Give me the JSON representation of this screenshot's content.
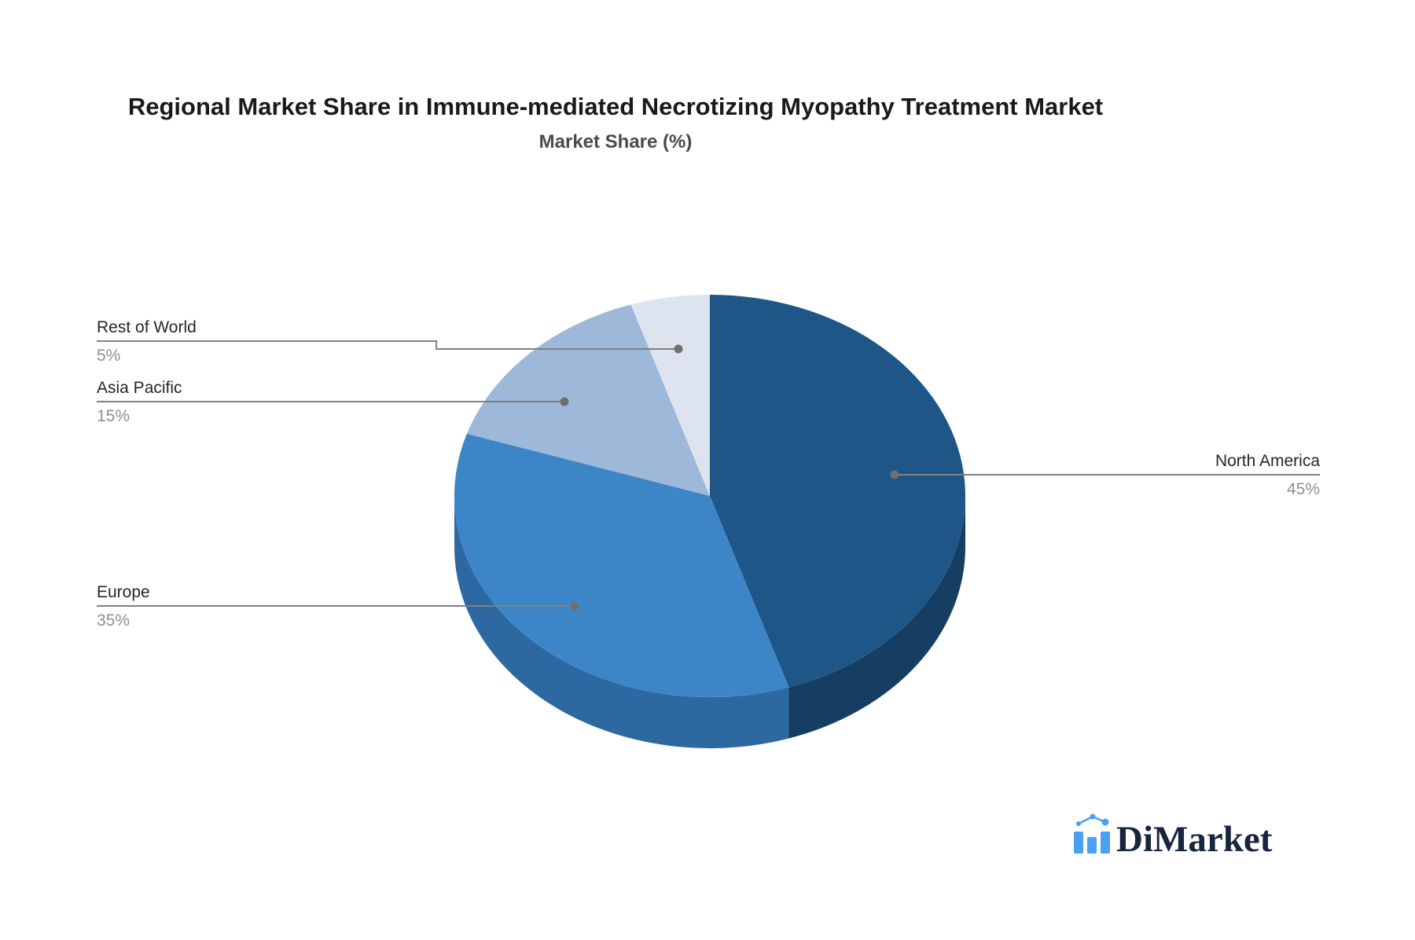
{
  "header": {
    "title": "Regional Market Share in Immune-mediated Necrotizing Myopathy Treatment Market",
    "subtitle": "Market Share (%)"
  },
  "chart_data": {
    "type": "pie",
    "title": "Regional Market Share in Immune-mediated Necrotizing Myopathy Treatment Market",
    "subtitle": "Market Share (%)",
    "style": "3d",
    "direction": "clockwise",
    "start_angle": "12-oclock",
    "unit": "%",
    "legend_position": "connector-labels",
    "segments": [
      {
        "label": "North America",
        "value": 45,
        "display_value": "45%",
        "color": "#1D5687",
        "side_color": "#163E62"
      },
      {
        "label": "Europe",
        "value": 35,
        "display_value": "35%",
        "color": "#3C86C8",
        "side_color": "#2D69A0"
      },
      {
        "label": "Asia Pacific",
        "value": 15,
        "display_value": "15%",
        "color": "#9DB8D9",
        "side_color": "#71849C"
      },
      {
        "label": "Rest of World",
        "value": 5,
        "display_value": "5%",
        "color": "#DDE4EF",
        "side_color": "#9FA4AC"
      }
    ],
    "label_text_color": "#262626",
    "value_text_color": "#8F8F8F",
    "connector_color": "#808080",
    "connector_dot_color": "#6F6F6F"
  },
  "logo": {
    "brand": "DiMarket",
    "icon": "bar-chart-trend-icon",
    "icon_color": "#4BA0F2",
    "text_color": "#17253E"
  }
}
